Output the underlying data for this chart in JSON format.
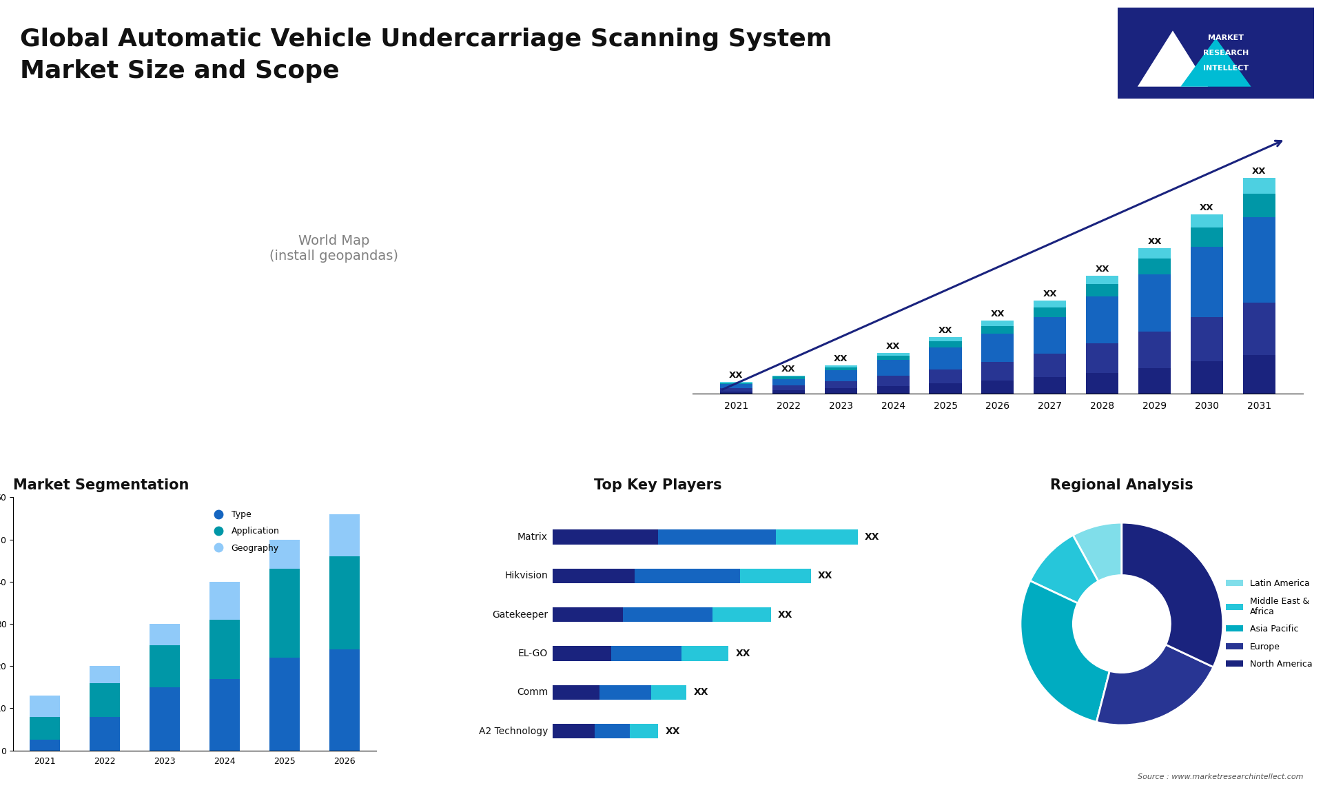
{
  "title_line1": "Global Automatic Vehicle Undercarriage Scanning System",
  "title_line2": "Market Size and Scope",
  "title_fontsize": 26,
  "background_color": "#ffffff",
  "bar_chart_years": [
    2021,
    2022,
    2023,
    2024,
    2025,
    2026,
    2027,
    2028,
    2029,
    2030,
    2031
  ],
  "bar_chart_segments": {
    "north_america": [
      1.0,
      1.5,
      2.2,
      3.0,
      4.0,
      5.2,
      6.5,
      8.0,
      10.0,
      12.5,
      15.0
    ],
    "europe": [
      1.2,
      1.8,
      2.8,
      4.0,
      5.5,
      7.0,
      9.0,
      11.5,
      14.0,
      17.0,
      20.0
    ],
    "asia_pacific": [
      1.5,
      2.5,
      4.0,
      6.0,
      8.5,
      11.0,
      14.0,
      18.0,
      22.0,
      27.0,
      33.0
    ],
    "middle_east": [
      0.5,
      0.8,
      1.2,
      1.7,
      2.3,
      3.0,
      3.8,
      4.8,
      6.0,
      7.5,
      9.0
    ],
    "latin_america": [
      0.3,
      0.5,
      0.8,
      1.1,
      1.5,
      2.0,
      2.5,
      3.2,
      4.0,
      5.0,
      6.0
    ]
  },
  "bar_segment_colors": [
    "#1a237e",
    "#283593",
    "#1565c0",
    "#0097a7",
    "#4dd0e1"
  ],
  "bar_label": "XX",
  "seg_title": "Market Segmentation",
  "seg_years": [
    2021,
    2022,
    2023,
    2024,
    2025,
    2026
  ],
  "seg_type": [
    2.5,
    8.0,
    15.0,
    17.0,
    22.0,
    24.0
  ],
  "seg_application": [
    5.5,
    8.0,
    10.0,
    14.0,
    21.0,
    22.0
  ],
  "seg_geography": [
    5.0,
    4.0,
    5.0,
    9.0,
    7.0,
    10.0
  ],
  "seg_colors": [
    "#1565c0",
    "#0097a7",
    "#90caf9"
  ],
  "seg_ylim": [
    0,
    60
  ],
  "players_title": "Top Key Players",
  "players": [
    "Matrix",
    "Hikvision",
    "Gatekeeper",
    "EL-GO",
    "Comm",
    "A2 Technology"
  ],
  "players_seg1": [
    4.5,
    3.5,
    3.0,
    2.5,
    2.0,
    1.8
  ],
  "players_seg2": [
    5.0,
    4.5,
    3.8,
    3.0,
    2.2,
    1.5
  ],
  "players_seg3": [
    3.5,
    3.0,
    2.5,
    2.0,
    1.5,
    1.2
  ],
  "players_colors": [
    "#1a237e",
    "#1565c0",
    "#26c6da"
  ],
  "regional_title": "Regional Analysis",
  "regional_labels": [
    "Latin America",
    "Middle East &\nAfrica",
    "Asia Pacific",
    "Europe",
    "North America"
  ],
  "regional_sizes": [
    8,
    10,
    28,
    22,
    32
  ],
  "regional_colors": [
    "#80deea",
    "#26c6da",
    "#00acc1",
    "#283593",
    "#1a237e"
  ],
  "source_text": "Source : www.marketresearchintellect.com"
}
